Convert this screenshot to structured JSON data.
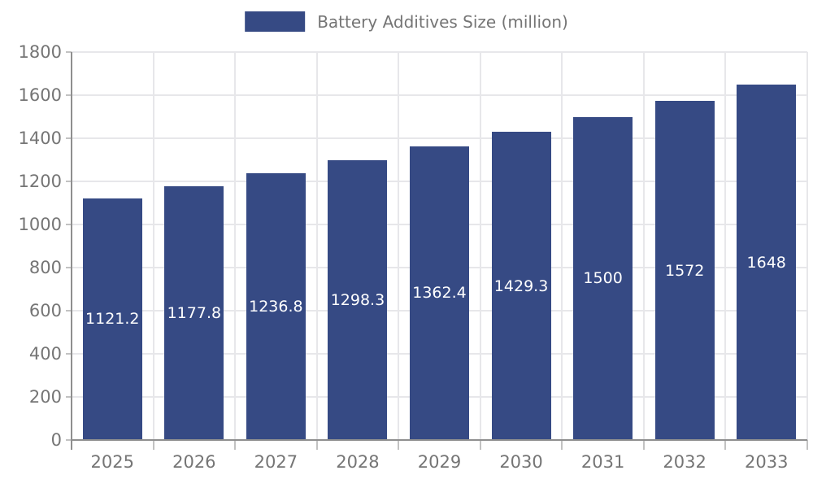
{
  "chart_data": {
    "type": "bar",
    "title": "Battery Additives Size (million)",
    "legend": {
      "label": "Battery Additives Size (million)",
      "position": "top-center"
    },
    "categories": [
      "2025",
      "2026",
      "2027",
      "2028",
      "2029",
      "2030",
      "2031",
      "2032",
      "2033"
    ],
    "values": [
      1121.2,
      1177.8,
      1236.8,
      1298.3,
      1362.4,
      1429.3,
      1500,
      1572,
      1648
    ],
    "value_labels": [
      "1121.2",
      "1177.8",
      "1236.8",
      "1298.3",
      "1362.4",
      "1429.3",
      "1500",
      "1572",
      "1648"
    ],
    "xlabel": "",
    "ylabel": "",
    "ylim": [
      0,
      1800
    ],
    "y_ticks": [
      0,
      200,
      400,
      600,
      800,
      1000,
      1200,
      1400,
      1600,
      1800
    ],
    "grid": true,
    "colors": {
      "bar": "#364a84",
      "value_label": "#ffffff",
      "tick_text": "#757575",
      "grid_line": "#e7e7ea",
      "axis_line": "#8f8f8f",
      "tick_mark": "#c2c2c2",
      "background": "#ffffff"
    }
  }
}
